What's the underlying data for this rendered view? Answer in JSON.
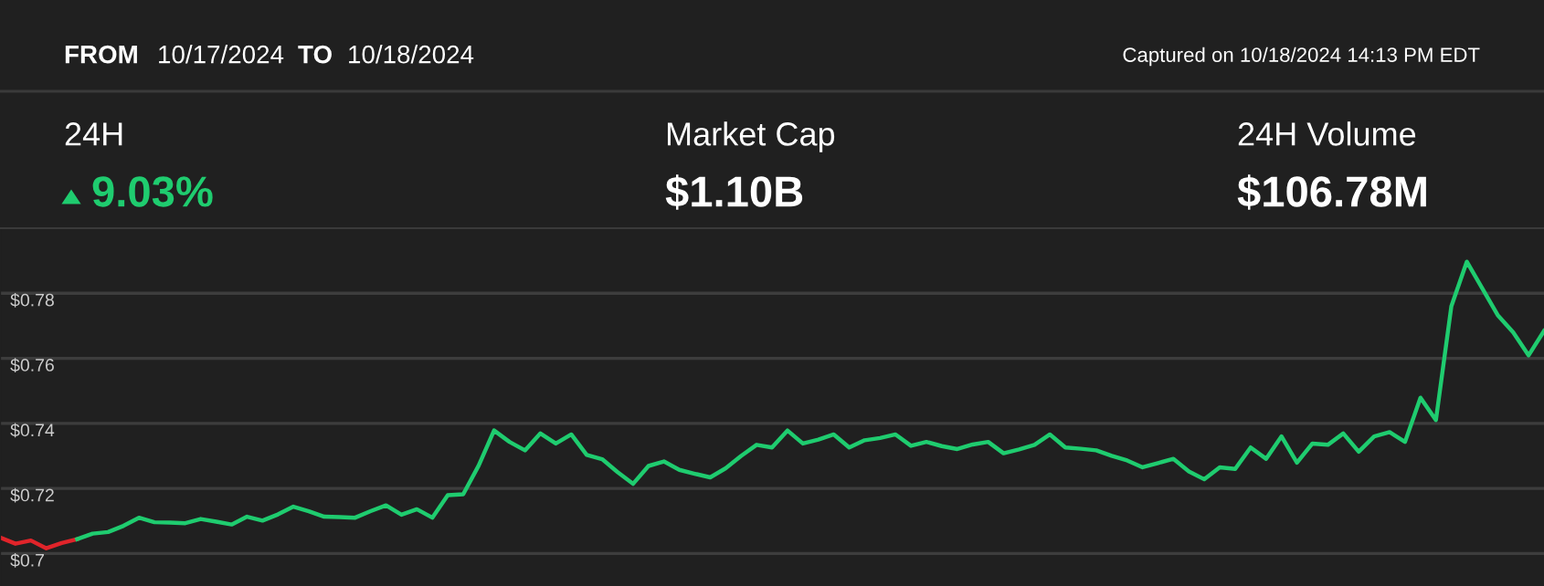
{
  "chart_data": {
    "type": "line",
    "annotations": [
      "FROM",
      "10/17/2024",
      "TO",
      "10/18/2024",
      "Captured on 10/18/2024 14:13 PM EDT",
      "24H",
      "9.03%",
      "Market Cap",
      "$1.10B",
      "24H Volume",
      "$106.78M"
    ],
    "categories": [
      null,
      null,
      null,
      null,
      null,
      null,
      null,
      null,
      null,
      null,
      null,
      null,
      null,
      null,
      null,
      null,
      null,
      null,
      null,
      null,
      null,
      null,
      null,
      null,
      null,
      null,
      null,
      null,
      null,
      null,
      null,
      null,
      null,
      null,
      null,
      null,
      null,
      null,
      null,
      null,
      null,
      null,
      null,
      null,
      null,
      null,
      null,
      null,
      null,
      null,
      null,
      null,
      null,
      null,
      null,
      null,
      null,
      null,
      null,
      null,
      null,
      null,
      null,
      null,
      null,
      null,
      null,
      null,
      null,
      null,
      null,
      null,
      null,
      null,
      null,
      null,
      null,
      null,
      null,
      null,
      null,
      null,
      null,
      null,
      null,
      null,
      null,
      null,
      null,
      null,
      null,
      null,
      null,
      null,
      null,
      null,
      null,
      null,
      null,
      null,
      null
    ],
    "series": [
      {
        "color": "#e0242a",
        "values": [
          0.7049,
          0.703,
          0.704,
          0.7016,
          0.7032,
          0.7044,
          null,
          null,
          null,
          null,
          null,
          null,
          null,
          null,
          null,
          null,
          null,
          null,
          null,
          null,
          null,
          null,
          null,
          null,
          null,
          null,
          null,
          null,
          null,
          null,
          null,
          null,
          null,
          null,
          null,
          null,
          null,
          null,
          null,
          null,
          null,
          null,
          null,
          null,
          null,
          null,
          null,
          null,
          null,
          null,
          null,
          null,
          null,
          null,
          null,
          null,
          null,
          null,
          null,
          null,
          null,
          null,
          null,
          null,
          null,
          null,
          null,
          null,
          null,
          null,
          null,
          null,
          null,
          null,
          null,
          null,
          null,
          null,
          null,
          null,
          null,
          null,
          null,
          null,
          null,
          null,
          null,
          null,
          null,
          null,
          null,
          null,
          null,
          null,
          null,
          null,
          null,
          null,
          null,
          null,
          null
        ]
      },
      {
        "color": "#1fcc6f",
        "values": [
          null,
          null,
          null,
          null,
          null,
          0.7044,
          0.7061,
          0.7066,
          0.7085,
          0.711,
          0.7096,
          0.7095,
          0.7093,
          0.7106,
          0.7098,
          0.7089,
          0.7113,
          0.7101,
          0.712,
          0.7144,
          0.713,
          0.7113,
          0.7112,
          0.711,
          0.713,
          0.7148,
          0.7119,
          0.7136,
          0.711,
          0.7179,
          0.7182,
          0.727,
          0.7378,
          0.7343,
          0.7317,
          0.7369,
          0.7338,
          0.7366,
          0.7303,
          0.729,
          0.725,
          0.7214,
          0.7269,
          0.7283,
          0.7257,
          0.7245,
          0.7234,
          0.7262,
          0.73,
          0.7334,
          0.7326,
          0.7378,
          0.7338,
          0.735,
          0.7366,
          0.7326,
          0.7348,
          0.7355,
          0.7366,
          0.7331,
          0.7343,
          0.733,
          0.7321,
          0.7335,
          0.7343,
          0.7308,
          0.732,
          0.7334,
          0.7366,
          0.7326,
          0.7322,
          0.7317,
          0.73,
          0.7286,
          0.7265,
          0.7278,
          0.7291,
          0.7252,
          0.7228,
          0.7265,
          0.726,
          0.7326,
          0.7291,
          0.736,
          0.7279,
          0.7338,
          0.7334,
          0.7369,
          0.7313,
          0.736,
          0.7373,
          0.7343,
          0.7479,
          0.741,
          0.776,
          0.7897,
          0.7815,
          0.7733,
          0.768,
          0.7609,
          0.7684
        ]
      }
    ],
    "ylim": [
      0.69,
      0.8
    ],
    "yticks": [
      {
        "value": 0.7,
        "label": "$0.7"
      },
      {
        "value": 0.72,
        "label": "$0.72"
      },
      {
        "value": 0.74,
        "label": "$0.74"
      },
      {
        "value": 0.76,
        "label": "$0.76"
      },
      {
        "value": 0.78,
        "label": "$0.78"
      }
    ],
    "tick_labels": "y",
    "grid": "y",
    "marker": "none",
    "line_style": "solid"
  }
}
